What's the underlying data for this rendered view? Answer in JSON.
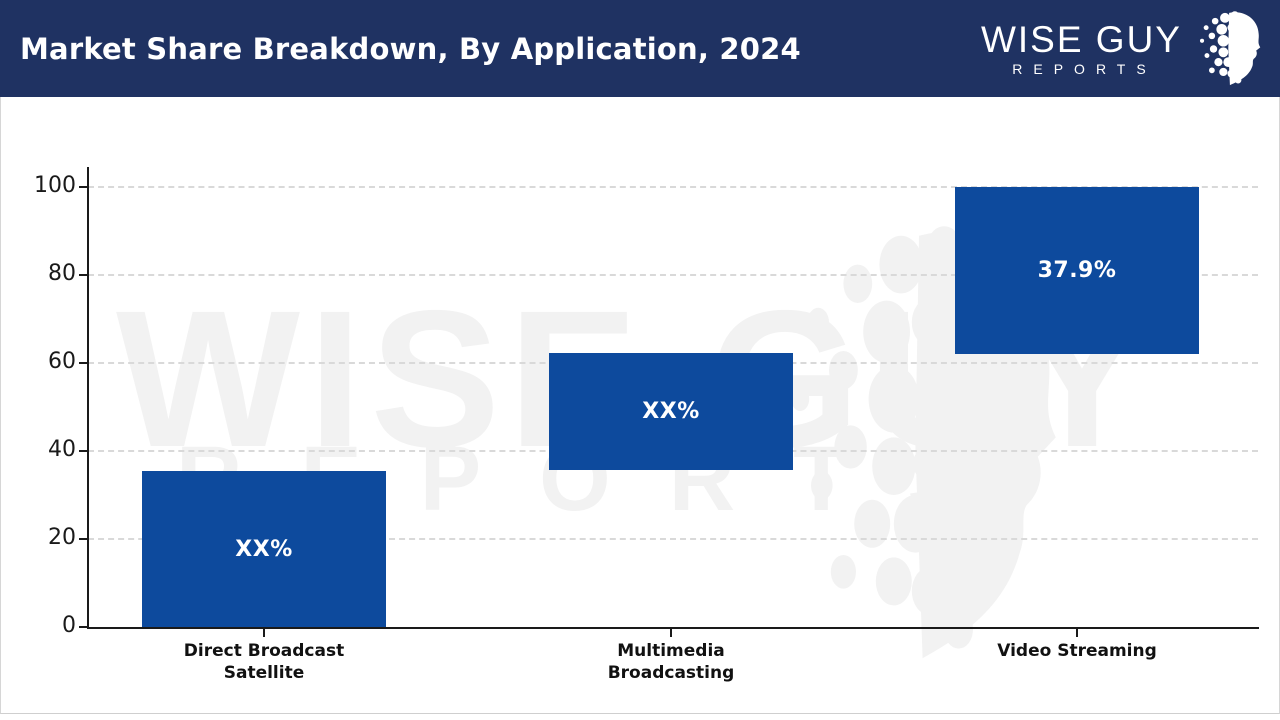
{
  "header": {
    "title": "Market Share Breakdown, By Application, 2024",
    "bg_color": "#1f3262",
    "logo": {
      "wordmark": "WISE GUY",
      "subtext": "REPORTS"
    }
  },
  "watermark": {
    "line1": "WISE GUY",
    "line2": "REPORTS"
  },
  "chart_data": {
    "type": "bar",
    "subtype": "waterfall",
    "title": "Market Share Breakdown, By Application, 2024",
    "xlabel": "",
    "ylabel": "",
    "ylim": [
      0,
      105
    ],
    "yticks": [
      0,
      20,
      40,
      60,
      80,
      100
    ],
    "grid": "horizontal-dashed",
    "gridline_color": "#d9d9d9",
    "bar_color": "#0d4a9d",
    "value_label_color": "#ffffff",
    "bars": [
      {
        "category": "Direct Broadcast Satellite",
        "label_lines": [
          "Direct Broadcast",
          "Satellite"
        ],
        "base": 0,
        "top": 35.4,
        "height_pct": 35.4,
        "value_label": "XX%"
      },
      {
        "category": "Multimedia Broadcasting",
        "label_lines": [
          "Multimedia",
          "Broadcasting"
        ],
        "base": 35.7,
        "top": 62.3,
        "height_pct": 26.6,
        "value_label": "XX%"
      },
      {
        "category": "Video Streaming",
        "label_lines": [
          "Video Streaming"
        ],
        "base": 62.1,
        "top": 100,
        "height_pct": 37.9,
        "value_label": "37.9%"
      }
    ]
  }
}
